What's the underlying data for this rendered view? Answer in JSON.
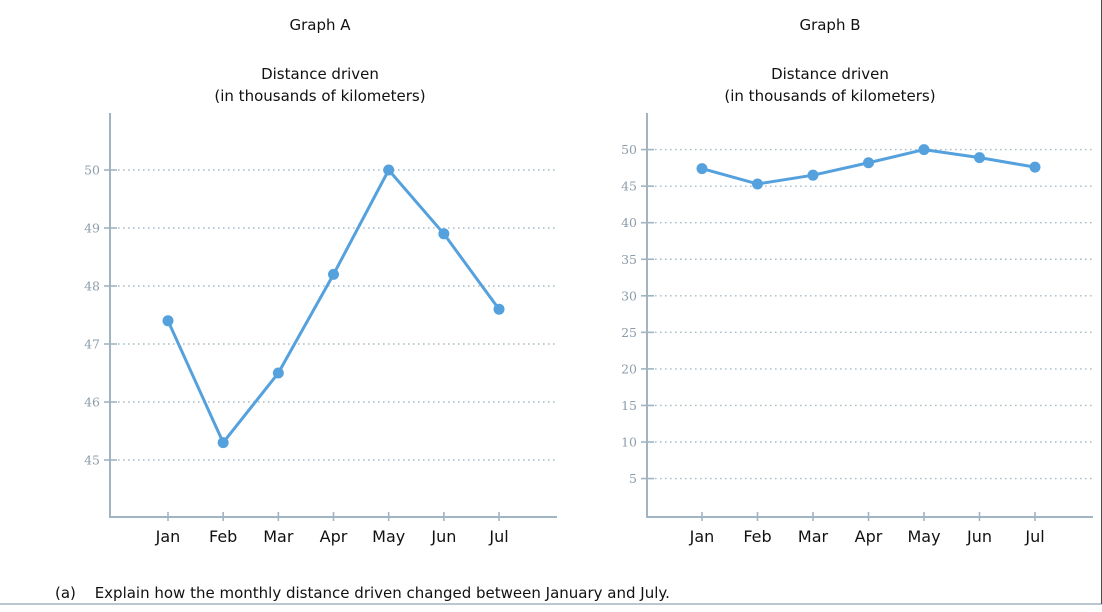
{
  "chart_data": [
    {
      "id": "graph-a",
      "type": "line",
      "title": "Graph A",
      "subtitle_line1": "Distance driven",
      "subtitle_line2": "(in thousands of kilometers)",
      "categories": [
        "Jan",
        "Feb",
        "Mar",
        "Apr",
        "May",
        "Jun",
        "Jul"
      ],
      "values": [
        47.4,
        45.3,
        46.5,
        48.2,
        50,
        48.9,
        47.6
      ],
      "y_ticks": [
        45,
        46,
        47,
        48,
        49,
        50
      ],
      "ylim": [
        44.3,
        51
      ],
      "xlabel": "",
      "ylabel": "",
      "grid": "horizontal-dotted",
      "legend": "none"
    },
    {
      "id": "graph-b",
      "type": "line",
      "title": "Graph B",
      "subtitle_line1": "Distance driven",
      "subtitle_line2": "(in thousands of kilometers)",
      "categories": [
        "Jan",
        "Feb",
        "Mar",
        "Apr",
        "May",
        "Jun",
        "Jul"
      ],
      "values": [
        47.4,
        45.3,
        46.5,
        48.2,
        50,
        48.9,
        47.6
      ],
      "y_ticks": [
        5,
        10,
        15,
        20,
        25,
        30,
        35,
        40,
        45,
        50
      ],
      "ylim": [
        0,
        52.5
      ],
      "xlabel": "",
      "ylabel": "",
      "grid": "horizontal-dotted",
      "legend": "none"
    }
  ],
  "question": {
    "label": "(a)",
    "text": "Explain how the monthly distance driven changed between January and July."
  },
  "colors": {
    "line": "#55a1dd",
    "axis": "#a0b5c1",
    "grid": "#a8bcc6",
    "tick_label": "#8c9dab",
    "text": "#111111",
    "divider": "#b9c7d0"
  }
}
